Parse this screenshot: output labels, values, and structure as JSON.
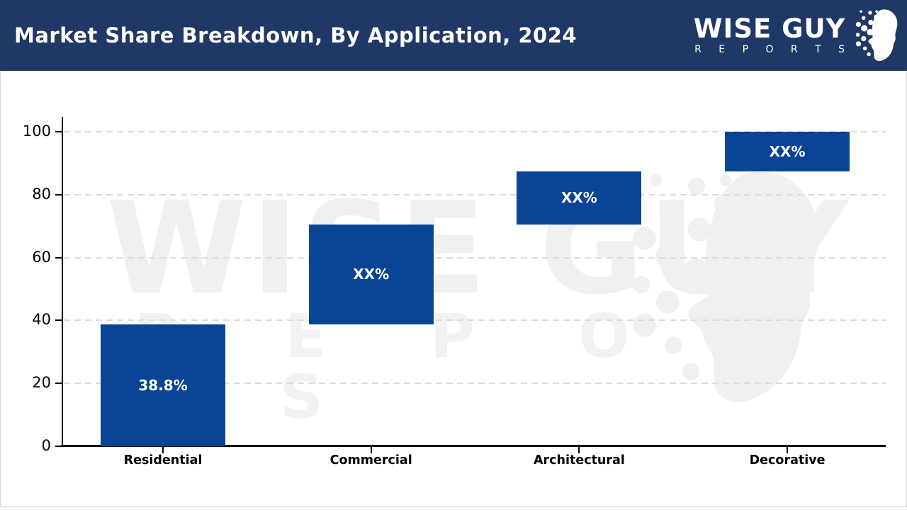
{
  "header": {
    "title": "Market Share Breakdown, By Application, 2024",
    "logo": {
      "wordmark": "WISE GUY",
      "subtext": "R E P O R T S"
    }
  },
  "watermark": {
    "wordmark": "WISE GUY",
    "subtext": "R E P O R T S"
  },
  "colors": {
    "header_bg": "#1f3866",
    "bar": "#0a4595",
    "bar_label": "#ffffff",
    "grid": "#dcdcdc",
    "axis": "#000000",
    "watermark": "#f0f0f0"
  },
  "chart_data": {
    "type": "bar",
    "subtype": "floating-range-waterfall",
    "title": "Market Share Breakdown, By Application, 2024",
    "categories": [
      "Residential",
      "Commercial",
      "Architectural",
      "Decorative"
    ],
    "bars": [
      {
        "category": "Residential",
        "start": 0,
        "end": 38.8,
        "label": "38.8%"
      },
      {
        "category": "Commercial",
        "start": 38.8,
        "end": 70.5,
        "label": "XX%"
      },
      {
        "category": "Architectural",
        "start": 70.6,
        "end": 87.3,
        "label": "XX%"
      },
      {
        "category": "Decorative",
        "start": 87.5,
        "end": 100,
        "label": "XX%"
      }
    ],
    "yticks": [
      0,
      20,
      40,
      60,
      80,
      100
    ],
    "ylim": [
      0,
      104.5
    ],
    "xlabel": "",
    "ylabel": "",
    "grid": "dashed-horizontal",
    "legend": "none",
    "bar_color": "#0a4595",
    "label_color": "#ffffff"
  }
}
